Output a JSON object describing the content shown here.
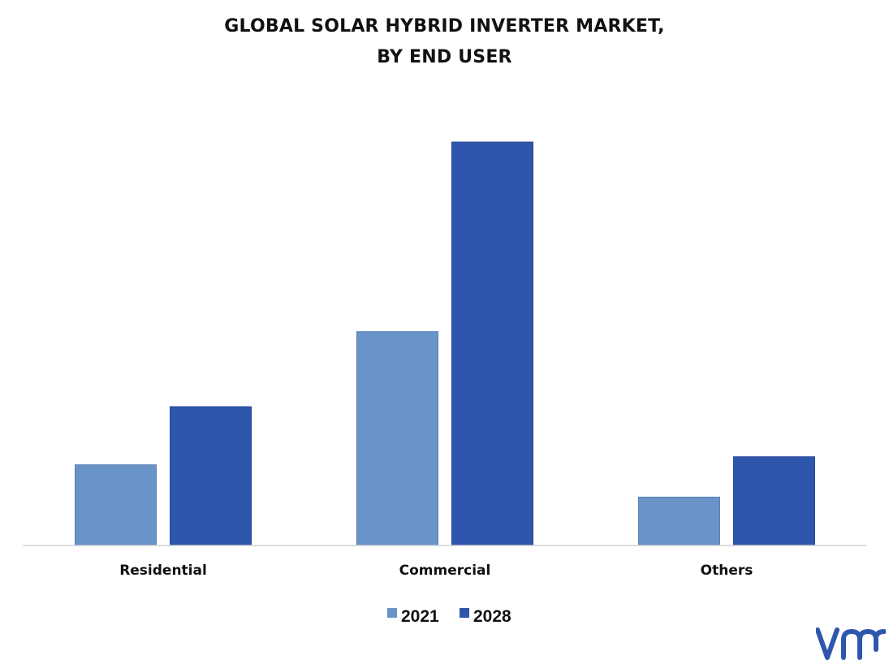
{
  "chart_data": {
    "type": "bar",
    "title_lines": [
      "GLOBAL SOLAR HYBRID INVERTER MARKET,",
      "BY END USER"
    ],
    "categories": [
      "Residential",
      "Commercial",
      "Others"
    ],
    "series": [
      {
        "name": "2021",
        "values": [
          1.0,
          2.65,
          0.6
        ],
        "color": "#6a93c8"
      },
      {
        "name": "2028",
        "values": [
          1.72,
          5.0,
          1.1
        ],
        "color": "#2e56ac"
      }
    ],
    "ylim": [
      0,
      5.3
    ],
    "grid": false,
    "legend_position": "bottom-center"
  },
  "branding": {
    "logo_icon": "vmr-logo-icon",
    "logo_color": "#2e56ac"
  }
}
